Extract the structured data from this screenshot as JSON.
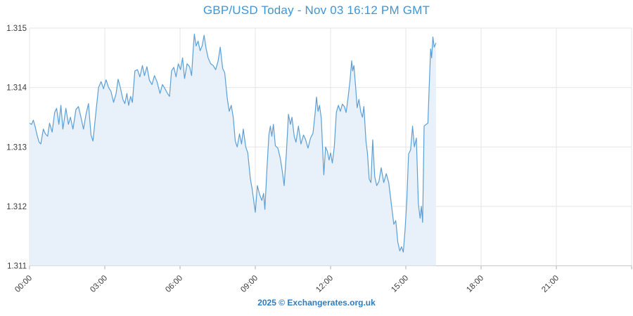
{
  "header": {
    "title": "GBP/USD Today - Nov 03 16:12 PM GMT"
  },
  "footer": {
    "copyright": "2025 © Exchangerates.org.uk"
  },
  "colors": {
    "title_text": "#3f95d3",
    "footer_text": "#2e7cc0",
    "line": "#5b9fd6",
    "area_fill": "#e8f1f9",
    "grid": "#e5e5e5",
    "axis_line": "#c9c9c9",
    "tick": "#adadad",
    "axis_text": "#3c3c3c"
  },
  "chart_data": {
    "type": "area",
    "title": "GBP/USD Today - Nov 03 16:12 PM GMT",
    "xlabel": "",
    "ylabel": "",
    "grid": true,
    "legend_position": "none",
    "x_axis": {
      "unit": "hours",
      "range_hours": [
        0,
        24
      ],
      "tick_hours": [
        0,
        3,
        6,
        9,
        12,
        15,
        18,
        21
      ],
      "tick_labels": [
        "00:00",
        "03:00",
        "06:00",
        "09:00",
        "12:00",
        "15:00",
        "18:00",
        "21:00"
      ]
    },
    "y_axis": {
      "range": [
        1.311,
        1.315
      ],
      "tick_values": [
        1.311,
        1.312,
        1.313,
        1.314,
        1.315
      ],
      "tick_labels": [
        "1.311",
        "1.312",
        "1.313",
        "1.314",
        "1.315"
      ]
    },
    "series": [
      {
        "name": "GBP/USD",
        "last_time": "16:12",
        "points": [
          [
            0.0,
            1.3134
          ],
          [
            0.08,
            1.31338
          ],
          [
            0.15,
            1.31345
          ],
          [
            0.22,
            1.31335
          ],
          [
            0.3,
            1.3132
          ],
          [
            0.38,
            1.31308
          ],
          [
            0.45,
            1.31305
          ],
          [
            0.55,
            1.3133
          ],
          [
            0.63,
            1.31322
          ],
          [
            0.72,
            1.31318
          ],
          [
            0.8,
            1.3134
          ],
          [
            0.9,
            1.31325
          ],
          [
            1.0,
            1.31358
          ],
          [
            1.08,
            1.31365
          ],
          [
            1.17,
            1.31338
          ],
          [
            1.25,
            1.3137
          ],
          [
            1.33,
            1.3133
          ],
          [
            1.45,
            1.31365
          ],
          [
            1.55,
            1.31338
          ],
          [
            1.63,
            1.3135
          ],
          [
            1.73,
            1.3133
          ],
          [
            1.85,
            1.31363
          ],
          [
            1.95,
            1.31368
          ],
          [
            2.05,
            1.3135
          ],
          [
            2.15,
            1.3133
          ],
          [
            2.25,
            1.31355
          ],
          [
            2.35,
            1.31373
          ],
          [
            2.45,
            1.3132
          ],
          [
            2.53,
            1.3131
          ],
          [
            2.65,
            1.3136
          ],
          [
            2.75,
            1.314
          ],
          [
            2.85,
            1.3141
          ],
          [
            2.95,
            1.31398
          ],
          [
            3.05,
            1.31413
          ],
          [
            3.15,
            1.314
          ],
          [
            3.25,
            1.31393
          ],
          [
            3.35,
            1.31375
          ],
          [
            3.45,
            1.3139
          ],
          [
            3.53,
            1.31414
          ],
          [
            3.62,
            1.314
          ],
          [
            3.72,
            1.3138
          ],
          [
            3.8,
            1.31373
          ],
          [
            3.88,
            1.3139
          ],
          [
            3.95,
            1.3137
          ],
          [
            4.03,
            1.31385
          ],
          [
            4.1,
            1.31375
          ],
          [
            4.2,
            1.31428
          ],
          [
            4.3,
            1.3143
          ],
          [
            4.4,
            1.31418
          ],
          [
            4.5,
            1.31437
          ],
          [
            4.58,
            1.3142
          ],
          [
            4.68,
            1.31435
          ],
          [
            4.78,
            1.31412
          ],
          [
            4.88,
            1.31405
          ],
          [
            4.98,
            1.3142
          ],
          [
            5.08,
            1.3141
          ],
          [
            5.2,
            1.3139
          ],
          [
            5.3,
            1.31405
          ],
          [
            5.4,
            1.31398
          ],
          [
            5.5,
            1.3139
          ],
          [
            5.58,
            1.31385
          ],
          [
            5.66,
            1.31428
          ],
          [
            5.75,
            1.31434
          ],
          [
            5.84,
            1.31418
          ],
          [
            5.93,
            1.3144
          ],
          [
            6.02,
            1.3143
          ],
          [
            6.1,
            1.3145
          ],
          [
            6.18,
            1.31415
          ],
          [
            6.28,
            1.3144
          ],
          [
            6.38,
            1.31435
          ],
          [
            6.46,
            1.3142
          ],
          [
            6.52,
            1.3146
          ],
          [
            6.57,
            1.3149
          ],
          [
            6.64,
            1.3147
          ],
          [
            6.72,
            1.31478
          ],
          [
            6.8,
            1.31462
          ],
          [
            6.88,
            1.3147
          ],
          [
            6.96,
            1.31488
          ],
          [
            7.04,
            1.31465
          ],
          [
            7.12,
            1.3145
          ],
          [
            7.22,
            1.3144
          ],
          [
            7.32,
            1.31437
          ],
          [
            7.42,
            1.3143
          ],
          [
            7.52,
            1.31445
          ],
          [
            7.6,
            1.31468
          ],
          [
            7.7,
            1.31432
          ],
          [
            7.78,
            1.31425
          ],
          [
            7.88,
            1.31382
          ],
          [
            7.96,
            1.3136
          ],
          [
            8.04,
            1.3137
          ],
          [
            8.12,
            1.3135
          ],
          [
            8.2,
            1.3131
          ],
          [
            8.28,
            1.313
          ],
          [
            8.37,
            1.31322
          ],
          [
            8.45,
            1.31305
          ],
          [
            8.52,
            1.3133
          ],
          [
            8.62,
            1.313
          ],
          [
            8.7,
            1.3129
          ],
          [
            8.8,
            1.31247
          ],
          [
            8.88,
            1.31228
          ],
          [
            8.95,
            1.31205
          ],
          [
            9.0,
            1.3119
          ],
          [
            9.08,
            1.31235
          ],
          [
            9.17,
            1.3122
          ],
          [
            9.26,
            1.3121
          ],
          [
            9.33,
            1.31222
          ],
          [
            9.38,
            1.31195
          ],
          [
            9.46,
            1.3126
          ],
          [
            9.54,
            1.3132
          ],
          [
            9.6,
            1.31335
          ],
          [
            9.66,
            1.31318
          ],
          [
            9.72,
            1.31338
          ],
          [
            9.8,
            1.31302
          ],
          [
            9.9,
            1.31298
          ],
          [
            10.0,
            1.3128
          ],
          [
            10.08,
            1.31258
          ],
          [
            10.15,
            1.31235
          ],
          [
            10.24,
            1.3129
          ],
          [
            10.32,
            1.31355
          ],
          [
            10.4,
            1.31338
          ],
          [
            10.46,
            1.3135
          ],
          [
            10.55,
            1.31318
          ],
          [
            10.62,
            1.31308
          ],
          [
            10.72,
            1.31335
          ],
          [
            10.82,
            1.31305
          ],
          [
            10.92,
            1.3132
          ],
          [
            11.0,
            1.31313
          ],
          [
            11.1,
            1.31298
          ],
          [
            11.2,
            1.31315
          ],
          [
            11.3,
            1.31323
          ],
          [
            11.38,
            1.31355
          ],
          [
            11.44,
            1.31384
          ],
          [
            11.5,
            1.3136
          ],
          [
            11.56,
            1.3137
          ],
          [
            11.63,
            1.31348
          ],
          [
            11.68,
            1.313
          ],
          [
            11.73,
            1.31253
          ],
          [
            11.8,
            1.313
          ],
          [
            11.87,
            1.31293
          ],
          [
            11.94,
            1.31278
          ],
          [
            12.0,
            1.3129
          ],
          [
            12.07,
            1.31273
          ],
          [
            12.15,
            1.313
          ],
          [
            12.23,
            1.31358
          ],
          [
            12.31,
            1.3137
          ],
          [
            12.39,
            1.3136
          ],
          [
            12.47,
            1.31372
          ],
          [
            12.55,
            1.31368
          ],
          [
            12.62,
            1.31358
          ],
          [
            12.7,
            1.31384
          ],
          [
            12.77,
            1.3141
          ],
          [
            12.84,
            1.31445
          ],
          [
            12.88,
            1.31428
          ],
          [
            12.93,
            1.31437
          ],
          [
            13.0,
            1.314
          ],
          [
            13.06,
            1.31366
          ],
          [
            13.13,
            1.3138
          ],
          [
            13.2,
            1.3136
          ],
          [
            13.27,
            1.3135
          ],
          [
            13.33,
            1.31368
          ],
          [
            13.41,
            1.3131
          ],
          [
            13.47,
            1.3129
          ],
          [
            13.54,
            1.31246
          ],
          [
            13.61,
            1.3124
          ],
          [
            13.68,
            1.31312
          ],
          [
            13.76,
            1.3125
          ],
          [
            13.84,
            1.31235
          ],
          [
            13.93,
            1.31242
          ],
          [
            14.02,
            1.31265
          ],
          [
            14.12,
            1.3124
          ],
          [
            14.22,
            1.31255
          ],
          [
            14.32,
            1.3124
          ],
          [
            14.42,
            1.31205
          ],
          [
            14.52,
            1.3117
          ],
          [
            14.6,
            1.31176
          ],
          [
            14.68,
            1.3114
          ],
          [
            14.76,
            1.31125
          ],
          [
            14.83,
            1.31132
          ],
          [
            14.9,
            1.31123
          ],
          [
            14.97,
            1.3116
          ],
          [
            15.04,
            1.3121
          ],
          [
            15.11,
            1.31288
          ],
          [
            15.19,
            1.31295
          ],
          [
            15.27,
            1.31335
          ],
          [
            15.34,
            1.313
          ],
          [
            15.42,
            1.31315
          ],
          [
            15.5,
            1.31205
          ],
          [
            15.57,
            1.3118
          ],
          [
            15.62,
            1.312
          ],
          [
            15.67,
            1.31173
          ],
          [
            15.73,
            1.31335
          ],
          [
            15.81,
            1.31338
          ],
          [
            15.88,
            1.3134
          ],
          [
            15.93,
            1.314
          ],
          [
            15.99,
            1.31465
          ],
          [
            16.03,
            1.3145
          ],
          [
            16.08,
            1.31485
          ],
          [
            16.13,
            1.31468
          ],
          [
            16.2,
            1.31475
          ]
        ]
      }
    ]
  }
}
